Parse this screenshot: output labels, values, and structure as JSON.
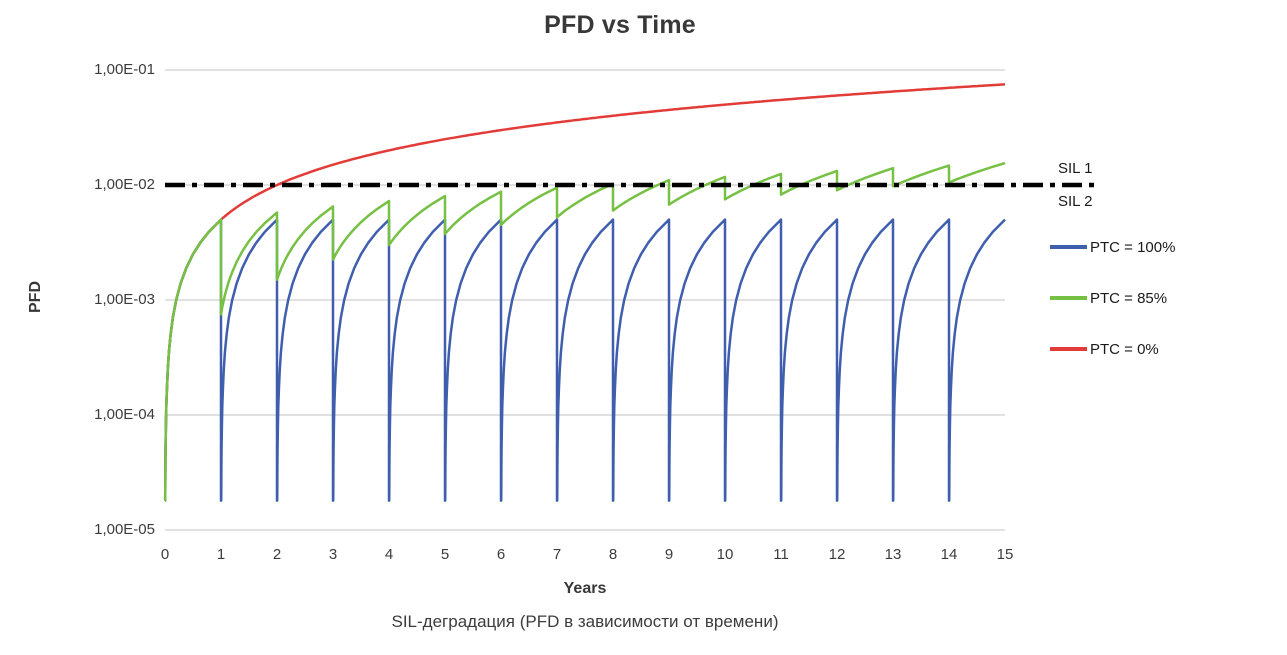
{
  "chart_data": {
    "type": "line",
    "title": "PFD vs Time",
    "xlabel": "Years",
    "ylabel": "PFD",
    "caption": "SIL-деградация (PFD в зависимости от времени)",
    "x_range": [
      0,
      15
    ],
    "y_scale": "log10",
    "y_range": [
      1e-05,
      0.1
    ],
    "x_tick_labels": [
      "0",
      "1",
      "2",
      "3",
      "4",
      "5",
      "6",
      "7",
      "8",
      "9",
      "10",
      "11",
      "12",
      "13",
      "14",
      "15"
    ],
    "y_tick_labels": [
      "1,00E-01",
      "1,00E-02",
      "1,00E-03",
      "1,00E-04",
      "1,00E-05"
    ],
    "grid": "horizontal-log-decades",
    "legend_position": "right",
    "model": {
      "lambda_per_year": 0.005,
      "proof_test_interval_years": 1,
      "plot_floor": 1.8e-05
    },
    "series": [
      {
        "name": "PTC = 100%",
        "color": "#3F5EAE",
        "ptc": 1.0,
        "annual_peaks": [
          0.005,
          0.005,
          0.005,
          0.005,
          0.005,
          0.005,
          0.005,
          0.005,
          0.005,
          0.005,
          0.005,
          0.005,
          0.005,
          0.005,
          0.005
        ],
        "post_test_values": [
          1.8e-05,
          1.8e-05,
          1.8e-05,
          1.8e-05,
          1.8e-05,
          1.8e-05,
          1.8e-05,
          1.8e-05,
          1.8e-05,
          1.8e-05,
          1.8e-05,
          1.8e-05,
          1.8e-05,
          1.8e-05
        ]
      },
      {
        "name": "PTC = 85%",
        "color": "#76C043",
        "ptc": 0.85,
        "annual_peaks": [
          0.005,
          0.00575,
          0.0065,
          0.00725,
          0.008,
          0.00875,
          0.0095,
          0.01025,
          0.011,
          0.01175,
          0.0125,
          0.01325,
          0.014,
          0.01475,
          0.0155
        ],
        "post_test_values": [
          0.00075,
          0.0015,
          0.00225,
          0.003,
          0.00375,
          0.0045,
          0.00525,
          0.006,
          0.00675,
          0.0075,
          0.00825,
          0.009,
          0.00975,
          0.0105
        ]
      },
      {
        "name": "PTC = 0%",
        "color": "#E23C38",
        "ptc": 0.0,
        "values_at_years": [
          0.005,
          0.01,
          0.015,
          0.02,
          0.025,
          0.03,
          0.035,
          0.04,
          0.045,
          0.05,
          0.055,
          0.06,
          0.065,
          0.07,
          0.075
        ]
      }
    ],
    "threshold": {
      "value": 0.01,
      "label_above": "SIL 1",
      "label_below": "SIL 2",
      "line_style": "dash-dot",
      "color": "#000000"
    },
    "colors": {
      "grid": "#C3C3C3",
      "axis_text": "#3C3C3C",
      "background": "#FFFFFF"
    }
  }
}
